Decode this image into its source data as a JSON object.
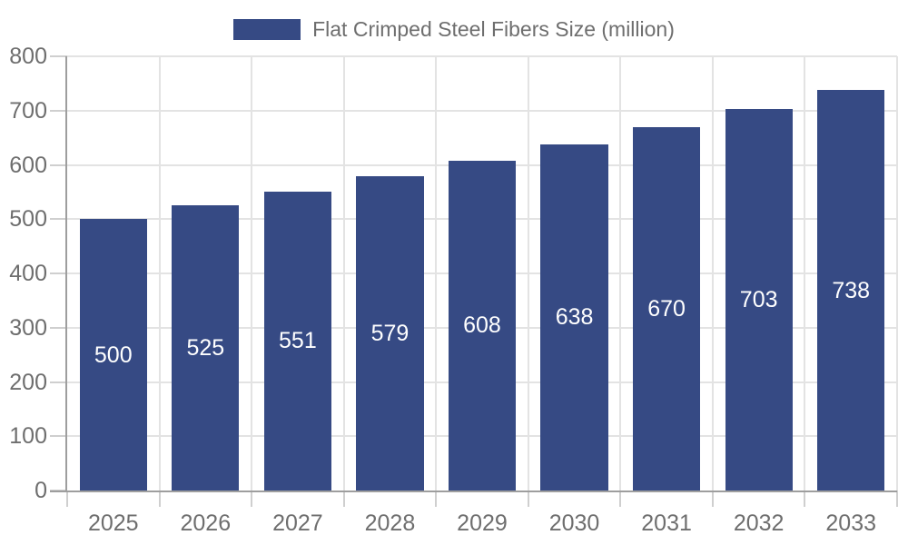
{
  "chart_data": {
    "type": "bar",
    "title": "Flat Crimped Steel Fibers Size (million)",
    "legend_label": "Flat Crimped Steel Fibers Size (million)",
    "categories": [
      "2025",
      "2026",
      "2027",
      "2028",
      "2029",
      "2030",
      "2031",
      "2032",
      "2033"
    ],
    "values": [
      500,
      525,
      551,
      579,
      608,
      638,
      670,
      703,
      738
    ],
    "yticks": [
      0,
      100,
      200,
      300,
      400,
      500,
      600,
      700,
      800
    ],
    "ylim": [
      0,
      800
    ],
    "xlabel": "",
    "ylabel": "",
    "grid": true,
    "legend_position": "top",
    "colors": {
      "bar": "#364a84",
      "grid": "#e3e3e3",
      "tick": "#cfcfcf",
      "axis": "#9e9e9e",
      "text": "#6e6e6e",
      "bar_label": "#ffffff",
      "background": "#ffffff"
    }
  }
}
